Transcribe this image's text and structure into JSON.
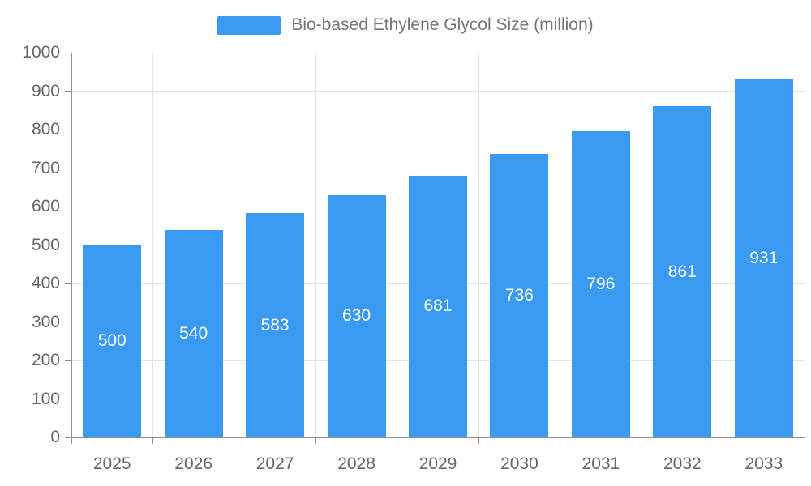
{
  "chart_data": {
    "type": "bar",
    "title": "Bio-based Ethylene Glycol Size (million)",
    "categories": [
      "2025",
      "2026",
      "2027",
      "2028",
      "2029",
      "2030",
      "2031",
      "2032",
      "2033"
    ],
    "series": [
      {
        "name": "Bio-based Ethylene Glycol Size (million)",
        "values": [
          500,
          540,
          583,
          630,
          681,
          736,
          796,
          861,
          931
        ]
      }
    ],
    "xlabel": "",
    "ylabel": "",
    "ylim": [
      0,
      1000
    ],
    "ytick_step": 100,
    "yticks": [
      0,
      100,
      200,
      300,
      400,
      500,
      600,
      700,
      800,
      900,
      1000
    ],
    "grid": true,
    "legend_position": "top-center",
    "value_labels_shown": true,
    "colors": {
      "bar": "#3A99F0",
      "grid_line": "#e3e3e3",
      "axis_line": "#909090",
      "tick_label": "#666666",
      "value_label": "#ffffff",
      "legend_text": "#757575",
      "background": "#ffffff"
    }
  }
}
